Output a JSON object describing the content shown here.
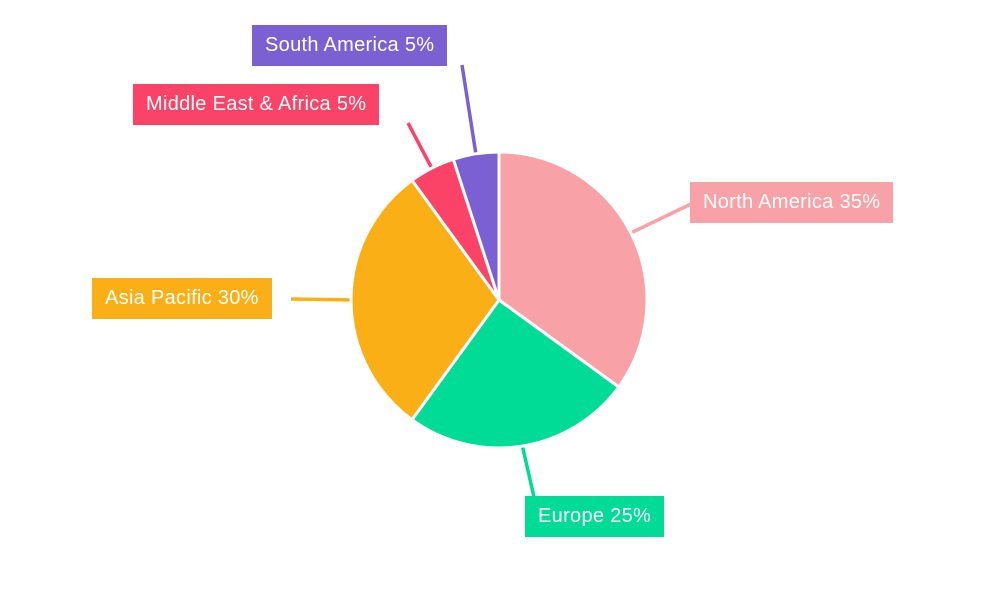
{
  "figure": {
    "background_color": "#ffffff"
  },
  "chart_data": {
    "type": "pie",
    "title": "",
    "unit": "%",
    "start_angle_deg": 0,
    "direction": "clockwise",
    "legend": "none",
    "labels_style": "external callout boxes with leader lines, white text on slice-colored background",
    "slice_border_color": "#ffffff",
    "label_text_color": "#ffffff",
    "categories": [
      "North America",
      "Europe",
      "Asia Pacific",
      "Middle East & Africa",
      "South America"
    ],
    "values": [
      35,
      25,
      30,
      5,
      5
    ],
    "slices": [
      {
        "label": "North America",
        "value": 35,
        "display": "North America 35%",
        "color": "#F8A2A8"
      },
      {
        "label": "Europe",
        "value": 25,
        "display": "Europe 25%",
        "color": "#00DC96"
      },
      {
        "label": "Asia Pacific",
        "value": 30,
        "display": "Asia Pacific 30%",
        "color": "#FBAF17"
      },
      {
        "label": "Middle East & Africa",
        "value": 5,
        "display": "Middle East & Africa 5%",
        "color": "#FA4366"
      },
      {
        "label": "South America",
        "value": 5,
        "display": "South America 5%",
        "color": "#7B60D4"
      }
    ]
  }
}
